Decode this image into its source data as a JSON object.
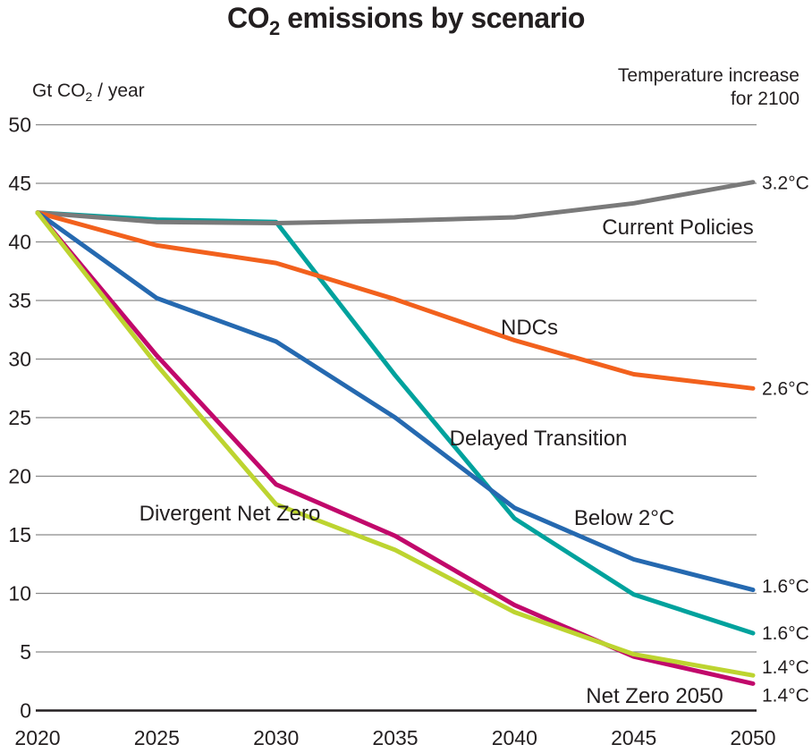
{
  "title": {
    "pre": "CO",
    "sub": "2",
    "post": " emissions by scenario"
  },
  "left_axis_label": {
    "pre": "Gt CO",
    "sub": "2",
    "post": " / year"
  },
  "right_axis_label": {
    "line1": "Temperature increase",
    "line2": "for 2100"
  },
  "colors": {
    "text": "#231f20",
    "gridline": "#8a8a8a",
    "axis_line": "#231f20"
  },
  "chart_data": {
    "type": "line",
    "title": "CO2 emissions by scenario",
    "xlabel": "",
    "ylabel": "Gt CO2 / year",
    "right_label": "Temperature increase for 2100",
    "x": [
      2020,
      2025,
      2030,
      2035,
      2040,
      2045,
      2050
    ],
    "x_tick_labels": [
      "2020",
      "2025",
      "2030",
      "2035",
      "2040",
      "2045",
      "2050"
    ],
    "y_ticks": [
      0,
      5,
      10,
      15,
      20,
      25,
      30,
      35,
      40,
      45,
      50
    ],
    "ylim": [
      0,
      50
    ],
    "grid": true,
    "legend_position": "inline-labels",
    "series": [
      {
        "name": "Delayed Transition",
        "color": "#00a29d",
        "temp_label": "1.6°C",
        "values": [
          42.5,
          41.9,
          41.7,
          28.6,
          16.4,
          9.9,
          6.6
        ]
      },
      {
        "name": "Current Policies",
        "color": "#7a7a7a",
        "temp_label": "3.2°C",
        "values": [
          42.5,
          41.7,
          41.6,
          41.8,
          42.1,
          43.3,
          45.1
        ]
      },
      {
        "name": "NDCs",
        "color": "#f2611d",
        "temp_label": "2.6°C",
        "values": [
          42.5,
          39.7,
          38.2,
          35.1,
          31.6,
          28.7,
          27.5
        ]
      },
      {
        "name": "Below 2°C",
        "color": "#2569b0",
        "temp_label": "1.6°C",
        "values": [
          42.5,
          35.2,
          31.5,
          25.0,
          17.3,
          12.9,
          10.3
        ]
      },
      {
        "name": "Net Zero 2050",
        "color": "#c1086b",
        "temp_label": "1.4°C",
        "values": [
          42.5,
          30.3,
          19.3,
          14.9,
          9.0,
          4.6,
          2.3
        ]
      },
      {
        "name": "Divergent Net Zero",
        "color": "#bdd430",
        "temp_label": "1.4°C",
        "values": [
          42.5,
          29.5,
          17.6,
          13.7,
          8.4,
          4.8,
          3.0
        ]
      }
    ]
  }
}
